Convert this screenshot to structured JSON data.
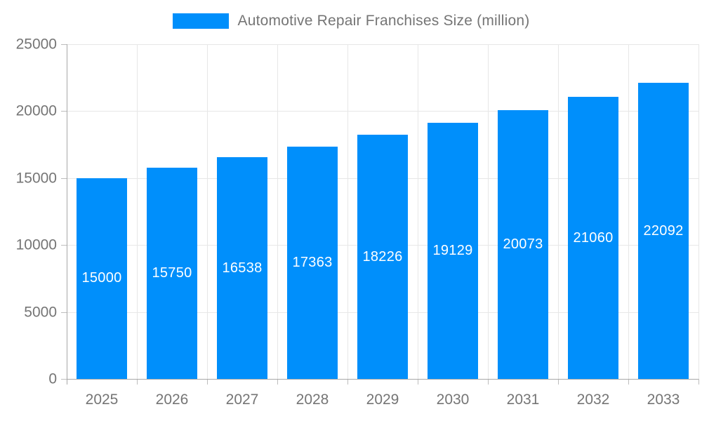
{
  "chart_data": {
    "type": "bar",
    "title": "",
    "legend": "Automotive Repair Franchises Size (million)",
    "legend_position": "top",
    "categories": [
      "2025",
      "2026",
      "2027",
      "2028",
      "2029",
      "2030",
      "2031",
      "2032",
      "2033"
    ],
    "series": [
      {
        "name": "Automotive Repair Franchises Size (million)",
        "values": [
          15000,
          15750,
          16538,
          17363,
          18226,
          19129,
          20073,
          21060,
          22092
        ]
      }
    ],
    "value_labels": [
      15000,
      15750,
      16538,
      17363,
      18226,
      19129,
      20073,
      21060,
      22092
    ],
    "value_label_position": "inside-center",
    "xlabel": "",
    "ylabel": "",
    "ylim": [
      0,
      25000
    ],
    "yticks": [
      0,
      5000,
      10000,
      15000,
      20000,
      25000
    ],
    "grid": true,
    "colors": {
      "bar": "#008FFB",
      "value_label": "#ffffff",
      "axis_text": "#757575",
      "grid_line": "#e7e7e7",
      "axis_line": "#a8a8a8",
      "tick_mark": "#bdbdbd",
      "background": "#ffffff"
    }
  }
}
